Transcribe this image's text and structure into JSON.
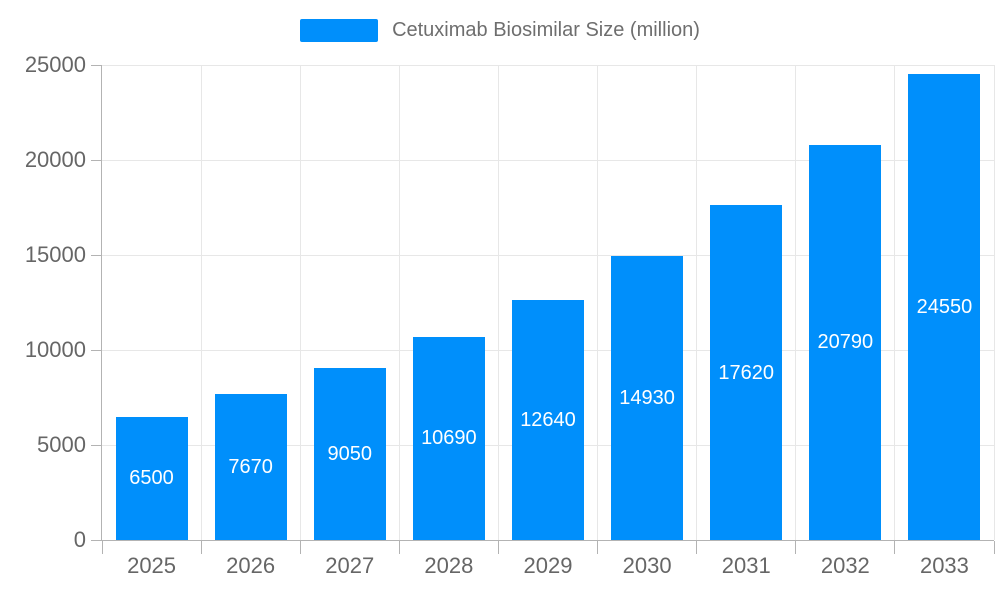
{
  "chart_data": {
    "type": "bar",
    "title": "Cetuximab Biosimilar Size (million)",
    "categories": [
      "2025",
      "2026",
      "2027",
      "2028",
      "2029",
      "2030",
      "2031",
      "2032",
      "2033"
    ],
    "series": [
      {
        "name": "Cetuximab Biosimilar Size (million)",
        "values": [
          6500,
          7670,
          9050,
          10690,
          12640,
          14930,
          17620,
          20790,
          24550
        ]
      }
    ],
    "xlabel": "",
    "ylabel": "",
    "ylim": [
      0,
      25000
    ],
    "yticks": [
      0,
      5000,
      10000,
      15000,
      20000,
      25000
    ],
    "grid": "horizontal-and-vertical",
    "legend_position": "top-center",
    "bar_value_labels": [
      "6500",
      "7670",
      "9050",
      "10690",
      "12640",
      "14930",
      "17620",
      "20790",
      "24550"
    ]
  },
  "colors": {
    "bar": "#008FFB",
    "bar_label_text": "#FFFFFF",
    "axis_text": "#666666",
    "legend_text": "#6E6E6E",
    "grid_line": "#E7E7E7",
    "axis_line": "#B3B3B3"
  }
}
